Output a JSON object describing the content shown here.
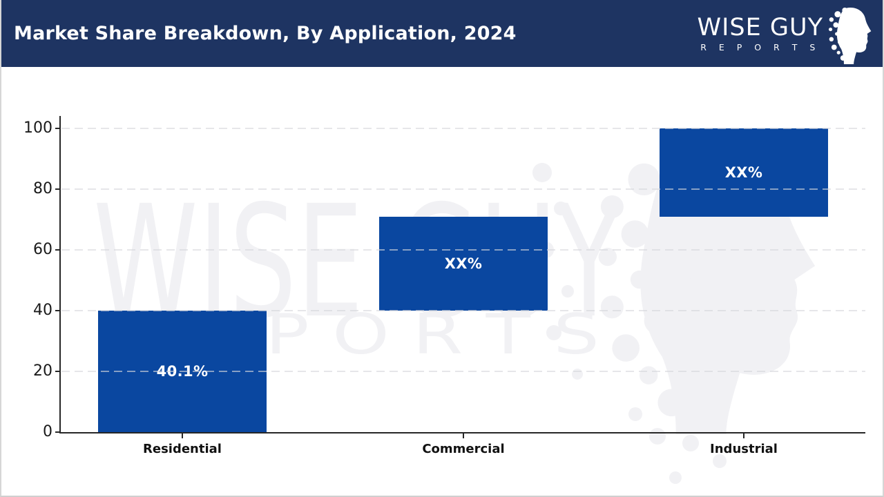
{
  "header": {
    "title": "Market Share Breakdown, By Application, 2024",
    "logo": {
      "line1": "WISE GUY",
      "line2": "R E P O R T S"
    }
  },
  "watermark": {
    "line1": "WISE GUY",
    "line2": "R E P O R T S"
  },
  "colors": {
    "header_bg": "#1e3462",
    "bar": "#0a47a0",
    "bar_label": "#ffffff",
    "axis": "#262626",
    "tick_label": "#1a1a1a",
    "gridline": "rgba(214,215,220,0.62)",
    "watermark": "#f1f1f4"
  },
  "chart_data": {
    "type": "bar",
    "variant": "floating-stacked-breakdown",
    "title": "Market Share Breakdown, By Application, 2024",
    "xlabel": "",
    "ylabel": "",
    "categories": [
      "Residential",
      "Commercial",
      "Industrial"
    ],
    "segments": [
      {
        "category": "Residential",
        "start": 0,
        "end": 40.1,
        "value": 40.1,
        "label": "40.1%"
      },
      {
        "category": "Commercial",
        "start": 40,
        "end": 71,
        "value": 31,
        "label": "XX%"
      },
      {
        "category": "Industrial",
        "start": 71,
        "end": 100,
        "value": 29,
        "label": "XX%"
      }
    ],
    "yticks": [
      0,
      20,
      40,
      60,
      80,
      100
    ],
    "ylim": [
      0,
      104
    ],
    "grid": "horizontal-dashed",
    "legend": "none"
  }
}
